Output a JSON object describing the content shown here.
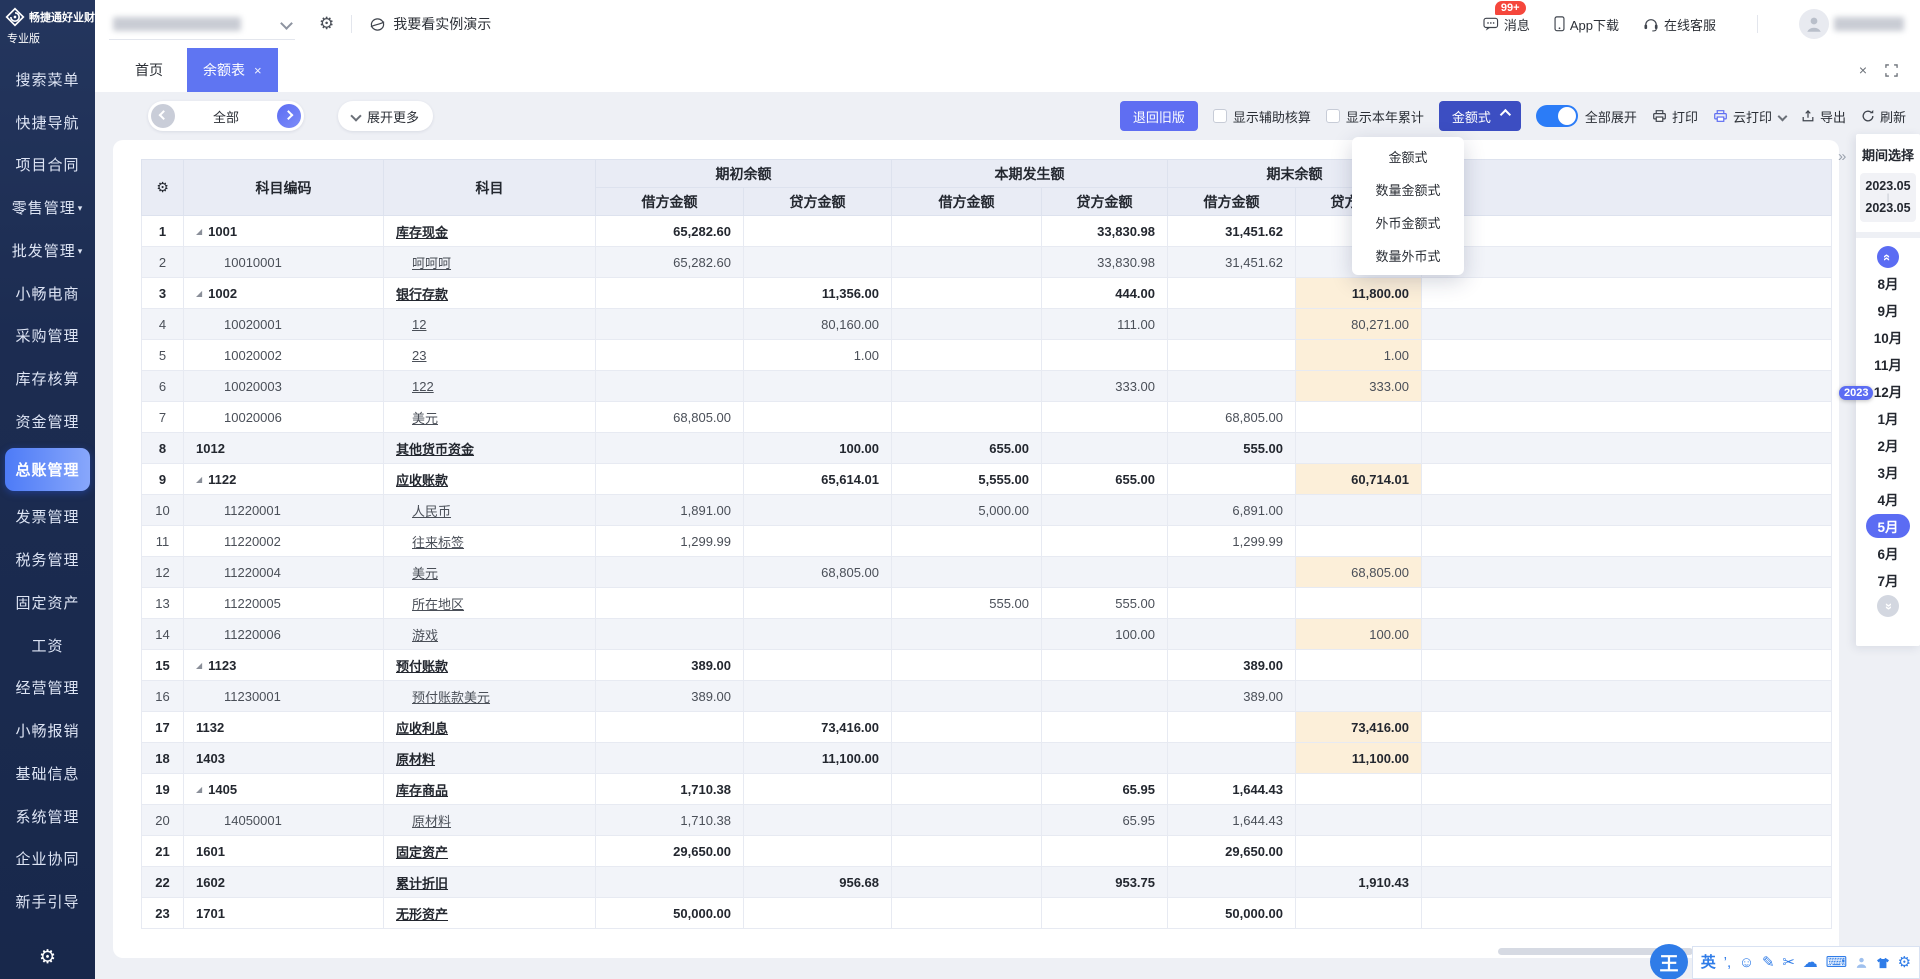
{
  "app": {
    "brand": "畅捷通好业财",
    "edition": "专业版"
  },
  "topbar": {
    "demo": "我要看实例演示",
    "messages": "消息",
    "messages_badge": "99+",
    "app_download": "App下载",
    "support": "在线客服"
  },
  "tabs": {
    "home": "首页",
    "active": "余额表",
    "close_icon": "×"
  },
  "toolbar": {
    "all": "全部",
    "expand_more": "展开更多",
    "back": "退回旧版",
    "show_aux": "显示辅助核算",
    "show_ytd": "显示本年累计",
    "format": "金额式",
    "expand_all": "全部展开",
    "print": "打印",
    "cloud_print": "云打印",
    "export": "导出",
    "refresh": "刷新"
  },
  "format_menu": {
    "items": [
      {
        "label": "金额式"
      },
      {
        "label": "数量金额式"
      },
      {
        "label": "外币金额式"
      },
      {
        "label": "数量外币式"
      }
    ]
  },
  "sidebar": {
    "items": [
      {
        "label": "搜索菜单"
      },
      {
        "label": "快捷导航"
      },
      {
        "label": "项目合同"
      },
      {
        "label": "零售管理",
        "arrow": true
      },
      {
        "label": "批发管理",
        "arrow": true
      },
      {
        "label": "小畅电商"
      },
      {
        "label": "采购管理"
      },
      {
        "label": "库存核算"
      },
      {
        "label": "资金管理"
      },
      {
        "label": "总账管理",
        "active": true
      },
      {
        "label": "发票管理"
      },
      {
        "label": "税务管理"
      },
      {
        "label": "固定资产"
      },
      {
        "label": "工资"
      },
      {
        "label": "经营管理"
      },
      {
        "label": "小畅报销"
      },
      {
        "label": "基础信息"
      },
      {
        "label": "系统管理"
      },
      {
        "label": "企业协同"
      },
      {
        "label": "新手引导"
      }
    ]
  },
  "table": {
    "headers": {
      "code": "科目编码",
      "name": "科目",
      "opening": "期初余额",
      "current": "本期发生额",
      "ending": "期末余额",
      "debit": "借方金额",
      "credit": "贷方金额"
    },
    "rows": [
      {
        "n": 1,
        "code": "1001",
        "name": "库存现金",
        "lvl": 1,
        "tri": true,
        "hl": false,
        "v": [
          "65,282.60",
          "",
          "",
          "33,830.98",
          "31,451.62",
          ""
        ]
      },
      {
        "n": 2,
        "code": "10010001",
        "name": "呵呵呵",
        "lvl": 2,
        "tri": false,
        "hl": false,
        "v": [
          "65,282.60",
          "",
          "",
          "33,830.98",
          "31,451.62",
          ""
        ]
      },
      {
        "n": 3,
        "code": "1002",
        "name": "银行存款",
        "lvl": 1,
        "tri": true,
        "hl": true,
        "v": [
          "",
          "11,356.00",
          "",
          "444.00",
          "",
          "11,800.00"
        ]
      },
      {
        "n": 4,
        "code": "10020001",
        "name": "12",
        "lvl": 2,
        "tri": false,
        "hl": true,
        "v": [
          "",
          "80,160.00",
          "",
          "111.00",
          "",
          "80,271.00"
        ]
      },
      {
        "n": 5,
        "code": "10020002",
        "name": "23",
        "lvl": 2,
        "tri": false,
        "hl": true,
        "v": [
          "",
          "1.00",
          "",
          "",
          "",
          "1.00"
        ]
      },
      {
        "n": 6,
        "code": "10020003",
        "name": "122",
        "lvl": 2,
        "tri": false,
        "hl": true,
        "v": [
          "",
          "",
          "",
          "333.00",
          "",
          "333.00"
        ]
      },
      {
        "n": 7,
        "code": "10020006",
        "name": "美元",
        "lvl": 2,
        "tri": false,
        "hl": false,
        "v": [
          "68,805.00",
          "",
          "",
          "",
          "68,805.00",
          ""
        ]
      },
      {
        "n": 8,
        "code": "1012",
        "name": "其他货币资金",
        "lvl": 1,
        "tri": false,
        "hl": false,
        "v": [
          "",
          "100.00",
          "655.00",
          "",
          "555.00",
          ""
        ]
      },
      {
        "n": 9,
        "code": "1122",
        "name": "应收账款",
        "lvl": 1,
        "tri": true,
        "hl": true,
        "v": [
          "",
          "65,614.01",
          "5,555.00",
          "655.00",
          "",
          "60,714.01"
        ]
      },
      {
        "n": 10,
        "code": "11220001",
        "name": "人民币",
        "lvl": 2,
        "tri": false,
        "hl": false,
        "v": [
          "1,891.00",
          "",
          "5,000.00",
          "",
          "6,891.00",
          ""
        ]
      },
      {
        "n": 11,
        "code": "11220002",
        "name": "往来标签",
        "lvl": 2,
        "tri": false,
        "hl": false,
        "v": [
          "1,299.99",
          "",
          "",
          "",
          "1,299.99",
          ""
        ]
      },
      {
        "n": 12,
        "code": "11220004",
        "name": "美元",
        "lvl": 2,
        "tri": false,
        "hl": true,
        "v": [
          "",
          "68,805.00",
          "",
          "",
          "",
          "68,805.00"
        ]
      },
      {
        "n": 13,
        "code": "11220005",
        "name": "所在地区",
        "lvl": 2,
        "tri": false,
        "hl": false,
        "v": [
          "",
          "",
          "555.00",
          "555.00",
          "",
          ""
        ]
      },
      {
        "n": 14,
        "code": "11220006",
        "name": "游戏",
        "lvl": 2,
        "tri": false,
        "hl": true,
        "v": [
          "",
          "",
          "",
          "100.00",
          "",
          "100.00"
        ]
      },
      {
        "n": 15,
        "code": "1123",
        "name": "预付账款",
        "lvl": 1,
        "tri": true,
        "hl": false,
        "v": [
          "389.00",
          "",
          "",
          "",
          "389.00",
          ""
        ]
      },
      {
        "n": 16,
        "code": "11230001",
        "name": "预付账款美元",
        "lvl": 2,
        "tri": false,
        "hl": false,
        "v": [
          "389.00",
          "",
          "",
          "",
          "389.00",
          ""
        ]
      },
      {
        "n": 17,
        "code": "1132",
        "name": "应收利息",
        "lvl": 1,
        "tri": false,
        "hl": true,
        "v": [
          "",
          "73,416.00",
          "",
          "",
          "",
          "73,416.00"
        ]
      },
      {
        "n": 18,
        "code": "1403",
        "name": "原材料",
        "lvl": 1,
        "tri": false,
        "hl": true,
        "v": [
          "",
          "11,100.00",
          "",
          "",
          "",
          "11,100.00"
        ]
      },
      {
        "n": 19,
        "code": "1405",
        "name": "库存商品",
        "lvl": 1,
        "tri": true,
        "hl": false,
        "v": [
          "1,710.38",
          "",
          "",
          "65.95",
          "1,644.43",
          ""
        ]
      },
      {
        "n": 20,
        "code": "14050001",
        "name": "原材料",
        "lvl": 2,
        "tri": false,
        "hl": false,
        "v": [
          "1,710.38",
          "",
          "",
          "65.95",
          "1,644.43",
          ""
        ]
      },
      {
        "n": 21,
        "code": "1601",
        "name": "固定资产",
        "lvl": 1,
        "tri": false,
        "hl": false,
        "v": [
          "29,650.00",
          "",
          "",
          "",
          "29,650.00",
          ""
        ]
      },
      {
        "n": 22,
        "code": "1602",
        "name": "累计折旧",
        "lvl": 1,
        "tri": false,
        "hl": false,
        "v": [
          "",
          "956.68",
          "",
          "953.75",
          "",
          "1,910.43"
        ]
      },
      {
        "n": 23,
        "code": "1701",
        "name": "无形资产",
        "lvl": 1,
        "tri": false,
        "hl": false,
        "v": [
          "50,000.00",
          "",
          "",
          "",
          "50,000.00",
          ""
        ]
      }
    ]
  },
  "period": {
    "title": "期间选择",
    "from": "2023.05",
    "to": "2023.05",
    "year_badge": "2023",
    "months": [
      {
        "label": "8月"
      },
      {
        "label": "9月"
      },
      {
        "label": "10月"
      },
      {
        "label": "11月"
      },
      {
        "label": "12月"
      },
      {
        "label": "1月"
      },
      {
        "label": "2月"
      },
      {
        "label": "3月"
      },
      {
        "label": "4月"
      },
      {
        "label": "5月",
        "selected": true
      },
      {
        "label": "6月"
      },
      {
        "label": "7月"
      }
    ]
  },
  "ime": {
    "logo": "王",
    "lang": "英",
    "punct": "’,",
    "icons": {
      "smiley": "☺",
      "pencil": "✎",
      "scissors": "✂",
      "cloud": "☁",
      "keyboard": "⌨",
      "gear": "⚙"
    }
  },
  "colors": {
    "accent": "#5b6cf3",
    "dark_accent": "#3c4ec2",
    "toggle_on": "#2b7cf7",
    "highlight_cell": "#fcefd9",
    "sidebar_bg": "#1d2e52",
    "badge_red": "#f5473c"
  }
}
